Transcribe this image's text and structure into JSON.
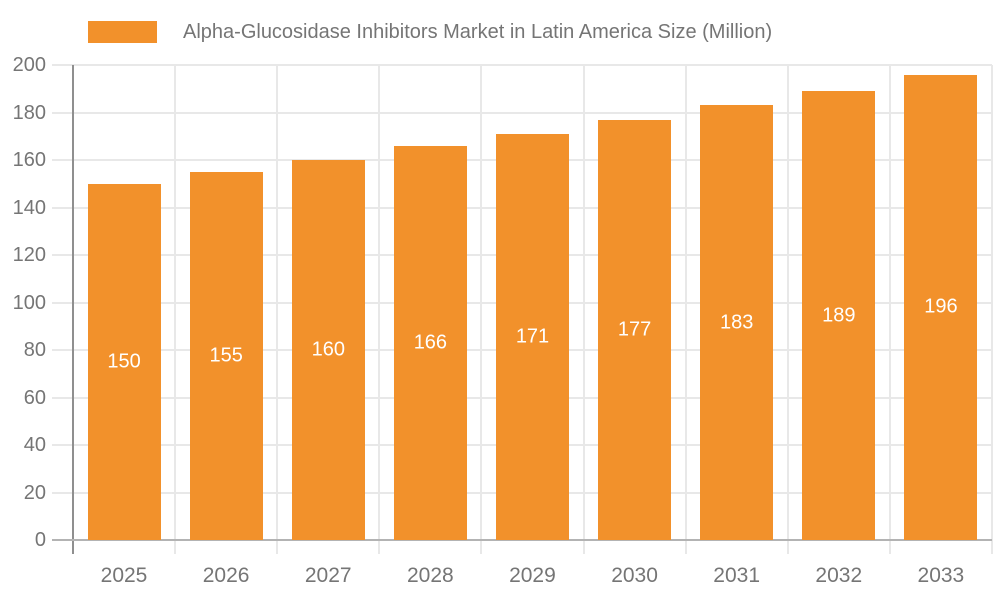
{
  "legend": {
    "swatch_color": "#F2912B",
    "label": "Alpha-Glucosidase Inhibitors Market in Latin America Size (Million)"
  },
  "chart_data": {
    "type": "bar",
    "title": "Alpha-Glucosidase Inhibitors Market in Latin America Size (Million)",
    "categories": [
      "2025",
      "2026",
      "2027",
      "2028",
      "2029",
      "2030",
      "2031",
      "2032",
      "2033"
    ],
    "values": [
      150,
      155,
      160,
      166,
      171,
      177,
      183,
      189,
      196
    ],
    "xlabel": "",
    "ylabel": "",
    "ylim": [
      0,
      200
    ],
    "ytick_step": 20,
    "ytick_labels": [
      "0",
      "20",
      "40",
      "60",
      "80",
      "100",
      "120",
      "140",
      "160",
      "180",
      "200"
    ],
    "grid": true,
    "legend_position": "top",
    "bar_color": "#F2912B",
    "bar_value_label_color": "#ffffff",
    "axis_text_color": "#757575",
    "gridline_color": "#E8E8E8",
    "yaxis_line_color": "#8F8F8F",
    "xaxis_line_color": "#B3B3B3"
  }
}
